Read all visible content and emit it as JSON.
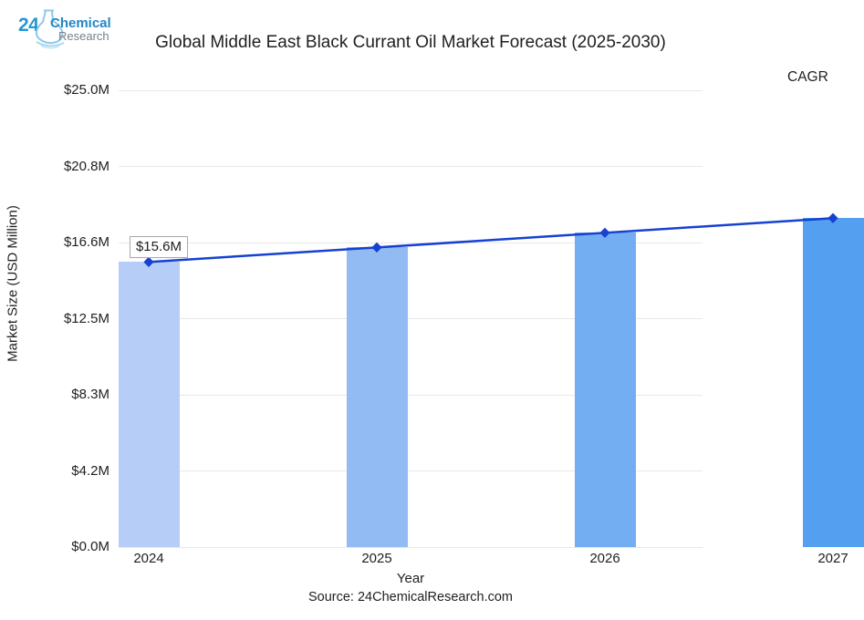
{
  "logo": {
    "number": "24",
    "chemical": "Chemical",
    "research": "Research"
  },
  "cagr_label": "CAGR",
  "annotation": {
    "text": "$15.6M",
    "attached_to": "2024"
  },
  "source": "Source: 24ChemicalResearch.com",
  "chart_data": {
    "type": "combo-bar-line",
    "title": "Global Middle East Black Currant Oil Market Forecast (2025-2030)",
    "xlabel": "Year",
    "ylabel": "Market Size (USD Million)",
    "categories": [
      "2024",
      "2025",
      "2026",
      "2027"
    ],
    "series": [
      {
        "name": "market-size-bars",
        "type": "bar",
        "values": [
          15.6,
          16.4,
          17.2,
          18.0
        ],
        "colors": [
          "#b6cdf7",
          "#92bbf4",
          "#73adf2",
          "#549ff0"
        ]
      },
      {
        "name": "trend-line",
        "type": "line",
        "values": [
          15.6,
          16.4,
          17.2,
          18.0
        ],
        "color": "#1641d1",
        "marker": "diamond"
      }
    ],
    "ylim": [
      0,
      25
    ],
    "yticks": [
      "$25.0M",
      "$20.8M",
      "$16.6M",
      "$12.5M",
      "$8.3M",
      "$4.2M",
      "$0.0M"
    ],
    "grid": true,
    "legend": "none"
  }
}
